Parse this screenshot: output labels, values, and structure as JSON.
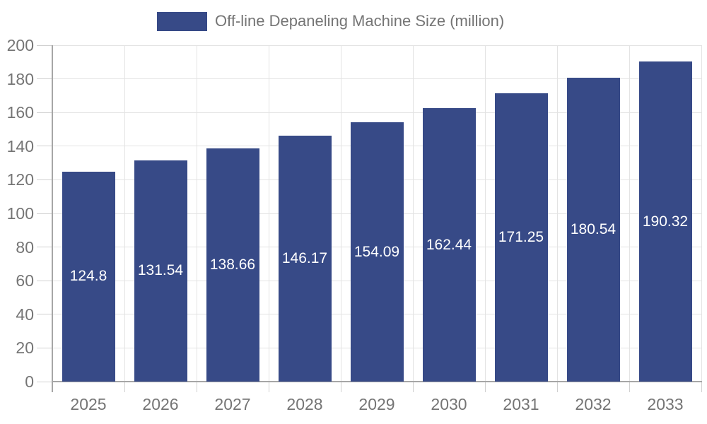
{
  "chart_data": {
    "type": "bar",
    "title": "",
    "legend": "Off-line Depaneling Machine Size (million)",
    "legend_position": "top-center",
    "categories": [
      "2025",
      "2026",
      "2027",
      "2028",
      "2029",
      "2030",
      "2031",
      "2032",
      "2033"
    ],
    "values": [
      124.8,
      131.54,
      138.66,
      146.17,
      154.09,
      162.44,
      171.25,
      180.54,
      190.32
    ],
    "value_labels": [
      "124.8",
      "131.54",
      "138.66",
      "146.17",
      "154.09",
      "162.44",
      "171.25",
      "180.54",
      "190.32"
    ],
    "xlabel": "",
    "ylabel": "",
    "ylim": [
      0,
      200
    ],
    "yticks": [
      "0",
      "20",
      "40",
      "60",
      "80",
      "100",
      "120",
      "140",
      "160",
      "180",
      "200"
    ],
    "grid": true,
    "colors": {
      "bar": "#374A87",
      "bar_label": "#FFFFFF",
      "axis_line": "#A6A6A6",
      "gridline": "#E3E3E3",
      "tick": "#D0D0D0",
      "tick_label": "#757575",
      "legend_text": "#757575",
      "background": "#FFFFFF"
    }
  }
}
